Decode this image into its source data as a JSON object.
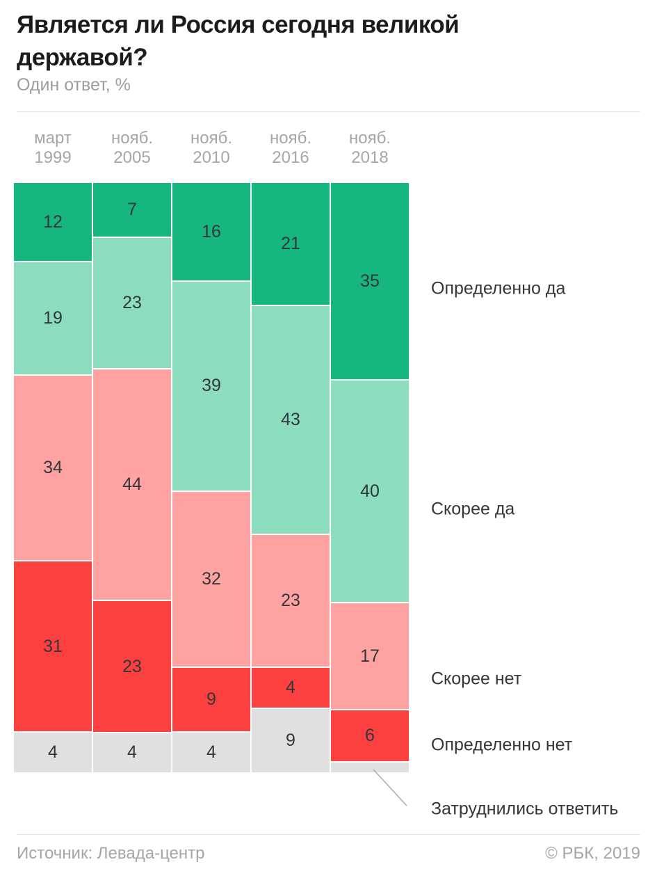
{
  "header": {
    "title_lines": [
      "Является ли Россия сегодня великой",
      "державой?"
    ],
    "subtitle": "Один ответ, %"
  },
  "footer": {
    "source": "Источник: Левада-центр",
    "copyright": "© РБК, 2019"
  },
  "chart_data": {
    "type": "bar",
    "stacked": true,
    "orientation": "vertical",
    "unit": "%",
    "title": "Является ли Россия сегодня великой державой?",
    "subtitle": "Один ответ, %",
    "categories": [
      "март 1999",
      "нояб. 2005",
      "нояб. 2010",
      "нояб. 2016",
      "нояб. 2018"
    ],
    "category_lines": [
      [
        "март",
        "1999"
      ],
      [
        "нояб.",
        "2005"
      ],
      [
        "нояб.",
        "2010"
      ],
      [
        "нояб.",
        "2016"
      ],
      [
        "нояб.",
        "2018"
      ]
    ],
    "series": [
      {
        "name": "Определенно да",
        "color": "#16b67f",
        "values": [
          12,
          7,
          16,
          21,
          35
        ],
        "labels": [
          "12",
          "7",
          "16",
          "21",
          "35"
        ]
      },
      {
        "name": "Скорее да",
        "color": "#8cdcbe",
        "values": [
          19,
          23,
          39,
          43,
          40
        ],
        "labels": [
          "19",
          "23",
          "39",
          "43",
          "40"
        ]
      },
      {
        "name": "Скорее нет",
        "color": "#ffa2a2",
        "values": [
          34,
          44,
          32,
          23,
          17
        ],
        "labels": [
          "34",
          "44",
          "32",
          "23",
          "17"
        ]
      },
      {
        "name": "Определенно нет",
        "color": "#fc4040",
        "values": [
          31,
          23,
          9,
          4,
          6
        ],
        "labels": [
          "31",
          "23",
          "9",
          "4",
          "6"
        ]
      },
      {
        "name": "Затруднились ответить",
        "color": "#e0e0e0",
        "values": [
          4,
          4,
          4,
          9,
          2
        ],
        "labels": [
          "4",
          "4",
          "4",
          "9",
          null
        ]
      }
    ],
    "legend_position": "right",
    "ylim": [
      0,
      100
    ],
    "grid": false,
    "callout": {
      "series": "Затруднились ответить",
      "category": "нояб. 2018"
    }
  }
}
